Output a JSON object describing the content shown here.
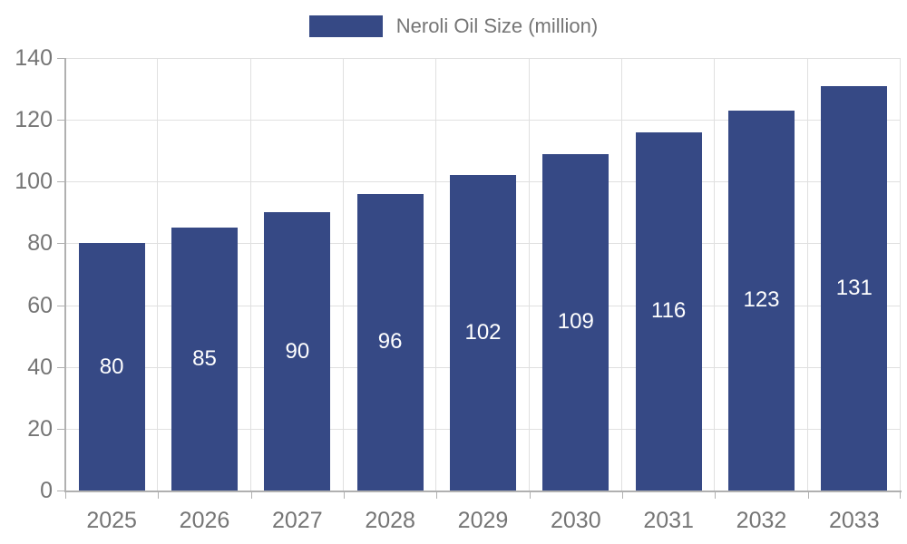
{
  "chart_data": {
    "type": "bar",
    "title": "",
    "legend": {
      "label": "Neroli Oil Size (million)",
      "position": "top-center"
    },
    "categories": [
      "2025",
      "2026",
      "2027",
      "2028",
      "2029",
      "2030",
      "2031",
      "2032",
      "2033"
    ],
    "series": [
      {
        "name": "Neroli Oil Size (million)",
        "values": [
          80,
          85,
          90,
          96,
          102,
          109,
          116,
          123,
          131
        ]
      }
    ],
    "xlabel": "",
    "ylabel": "",
    "ylim": [
      0,
      140
    ],
    "ytick_step": 20,
    "yticks": [
      0,
      20,
      40,
      60,
      80,
      100,
      120,
      140
    ],
    "grid": "on",
    "colors": {
      "bar": "#364985",
      "bar_label": "#ffffff",
      "grid": "#e0e0e0",
      "axis": "#b0b0b0",
      "tick": "#b0b0b0",
      "text": "#757575"
    }
  }
}
